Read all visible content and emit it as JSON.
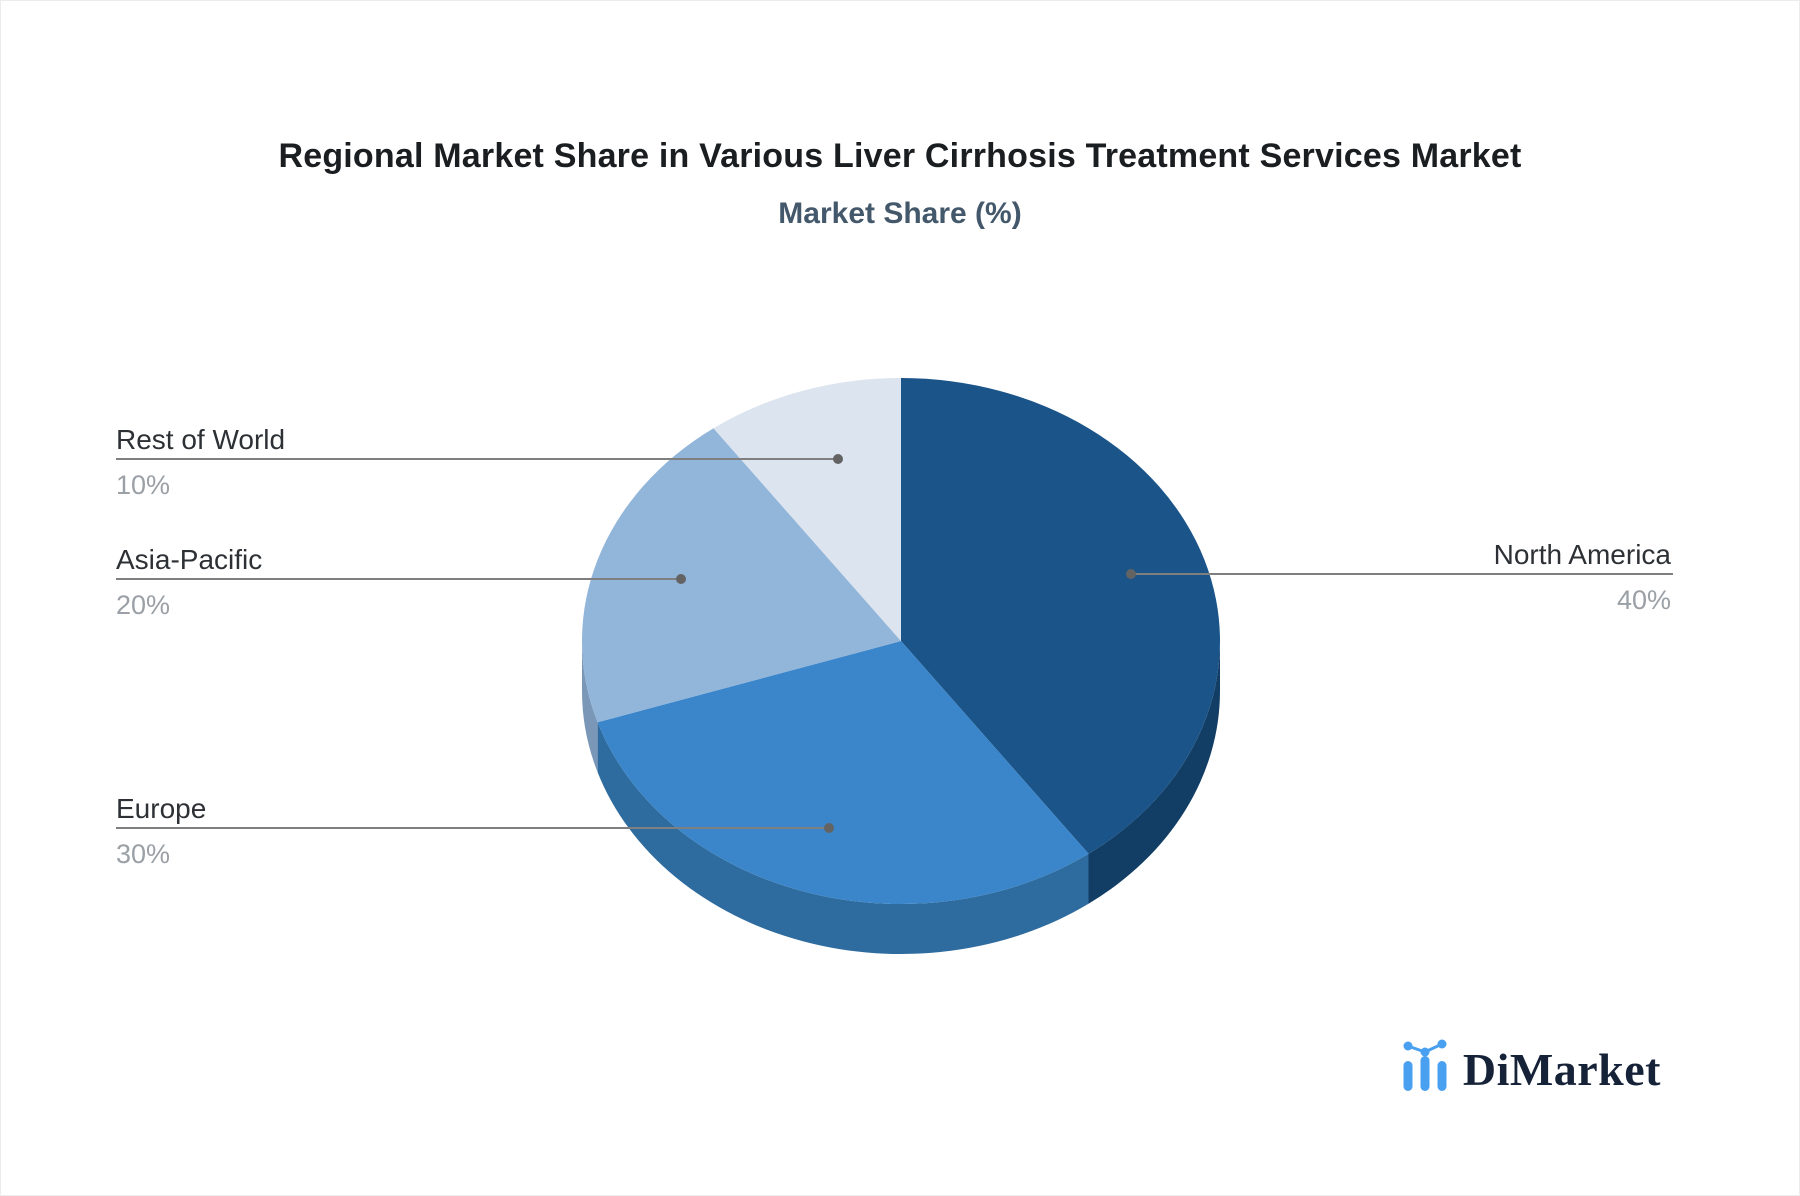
{
  "header": {
    "title": "Regional Market Share in Various Liver Cirrhosis Treatment Services Market",
    "subtitle": "Market Share (%)"
  },
  "chart_data": {
    "type": "pie",
    "style": "3d",
    "title": "Regional Market Share in Various Liver Cirrhosis Treatment Services Market",
    "subtitle": "Market Share (%)",
    "unit": "%",
    "categories": [
      "North America",
      "Europe",
      "Asia-Pacific",
      "Rest of World"
    ],
    "values": [
      40,
      30,
      20,
      10
    ],
    "labels_pct": [
      "40%",
      "30%",
      "20%",
      "10%"
    ],
    "colors": [
      "#1a5489",
      "#3b86ca",
      "#92b5da",
      "#dce4ef"
    ],
    "side_colors": [
      "#123e66",
      "#2e6b9e",
      "#7a97b8",
      "#c2cddd"
    ],
    "start_angle_deg": 0,
    "direction": "clockwise",
    "legend": "callout-lines",
    "callout_line_color": "#7f7f7f",
    "callout_dot_color": "#636363"
  },
  "logo": {
    "text": "DiMarket",
    "icon": "bar-line-chart-icon",
    "icon_color": "#4aa0f0",
    "text_color": "#152238"
  }
}
